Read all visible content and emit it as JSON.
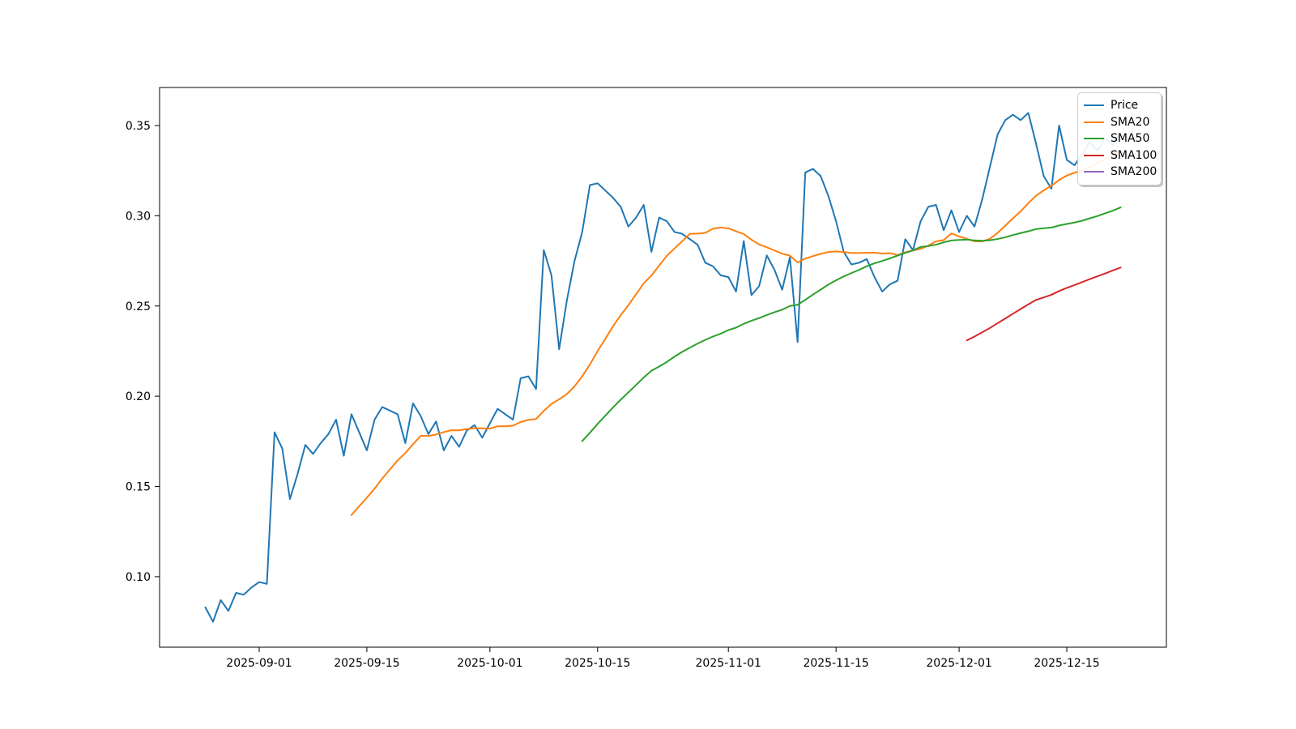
{
  "figure": {
    "background": "#ffffff",
    "axes_edge_color": "#000000",
    "tick_color": "#000000"
  },
  "chart_data": {
    "type": "line",
    "title": "",
    "xlabel": "",
    "ylabel": "",
    "grid": false,
    "legend_position": "upper right",
    "x_start_date": "2025-08-25",
    "x_end_date": "2025-12-22",
    "x_frequency": "daily",
    "x_margin_fraction": 0.05,
    "y_margin_fraction": 0.05,
    "x_ticks": [
      {
        "label": "2025-09-01",
        "day_index": 7
      },
      {
        "label": "2025-09-15",
        "day_index": 21
      },
      {
        "label": "2025-10-01",
        "day_index": 37
      },
      {
        "label": "2025-10-15",
        "day_index": 51
      },
      {
        "label": "2025-11-01",
        "day_index": 68
      },
      {
        "label": "2025-11-15",
        "day_index": 82
      },
      {
        "label": "2025-12-01",
        "day_index": 98
      },
      {
        "label": "2025-12-15",
        "day_index": 112
      }
    ],
    "y_ticks": [
      {
        "label": "0.10",
        "value": 0.1
      },
      {
        "label": "0.15",
        "value": 0.15
      },
      {
        "label": "0.20",
        "value": 0.2
      },
      {
        "label": "0.25",
        "value": 0.25
      },
      {
        "label": "0.30",
        "value": 0.3
      },
      {
        "label": "0.35",
        "value": 0.35
      }
    ],
    "price": [
      0.083,
      0.075,
      0.087,
      0.081,
      0.091,
      0.09,
      0.094,
      0.097,
      0.096,
      0.18,
      0.171,
      0.143,
      0.157,
      0.173,
      0.168,
      0.174,
      0.179,
      0.187,
      0.167,
      0.19,
      0.18,
      0.17,
      0.187,
      0.194,
      0.192,
      0.19,
      0.174,
      0.196,
      0.189,
      0.179,
      0.186,
      0.17,
      0.178,
      0.172,
      0.181,
      0.184,
      0.177,
      0.185,
      0.193,
      0.19,
      0.187,
      0.21,
      0.211,
      0.204,
      0.281,
      0.267,
      0.226,
      0.253,
      0.275,
      0.291,
      0.317,
      0.318,
      0.314,
      0.31,
      0.305,
      0.294,
      0.299,
      0.306,
      0.28,
      0.299,
      0.297,
      0.291,
      0.29,
      0.287,
      0.284,
      0.274,
      0.272,
      0.267,
      0.266,
      0.258,
      0.286,
      0.256,
      0.261,
      0.278,
      0.27,
      0.259,
      0.277,
      0.23,
      0.324,
      0.326,
      0.322,
      0.311,
      0.297,
      0.28,
      0.273,
      0.274,
      0.276,
      0.266,
      0.258,
      0.262,
      0.264,
      0.287,
      0.281,
      0.297,
      0.305,
      0.306,
      0.292,
      0.303,
      0.291,
      0.3,
      0.294,
      0.309,
      0.327,
      0.345,
      0.353,
      0.356,
      0.353,
      0.357,
      0.34,
      0.322,
      0.315,
      0.35,
      0.331,
      0.328,
      0.334,
      0.341,
      0.336,
      0.343,
      0.339,
      0.346
    ],
    "series": [
      {
        "name": "Price",
        "color": "#1f77b4",
        "kind": "raw"
      },
      {
        "name": "SMA20",
        "color": "#ff7f0e",
        "kind": "sma",
        "window": 20
      },
      {
        "name": "SMA50",
        "color": "#2ca02c",
        "kind": "sma",
        "window": 50
      },
      {
        "name": "SMA100",
        "color": "#d62728",
        "kind": "sma",
        "window": 100
      },
      {
        "name": "SMA200",
        "color": "#9467bd",
        "kind": "sma",
        "window": 200
      }
    ]
  },
  "legend": {
    "entries": [
      {
        "label": "Price",
        "color": "#1f77b4"
      },
      {
        "label": "SMA20",
        "color": "#ff7f0e"
      },
      {
        "label": "SMA50",
        "color": "#2ca02c"
      },
      {
        "label": "SMA100",
        "color": "#d62728"
      },
      {
        "label": "SMA200",
        "color": "#9467bd"
      }
    ]
  }
}
